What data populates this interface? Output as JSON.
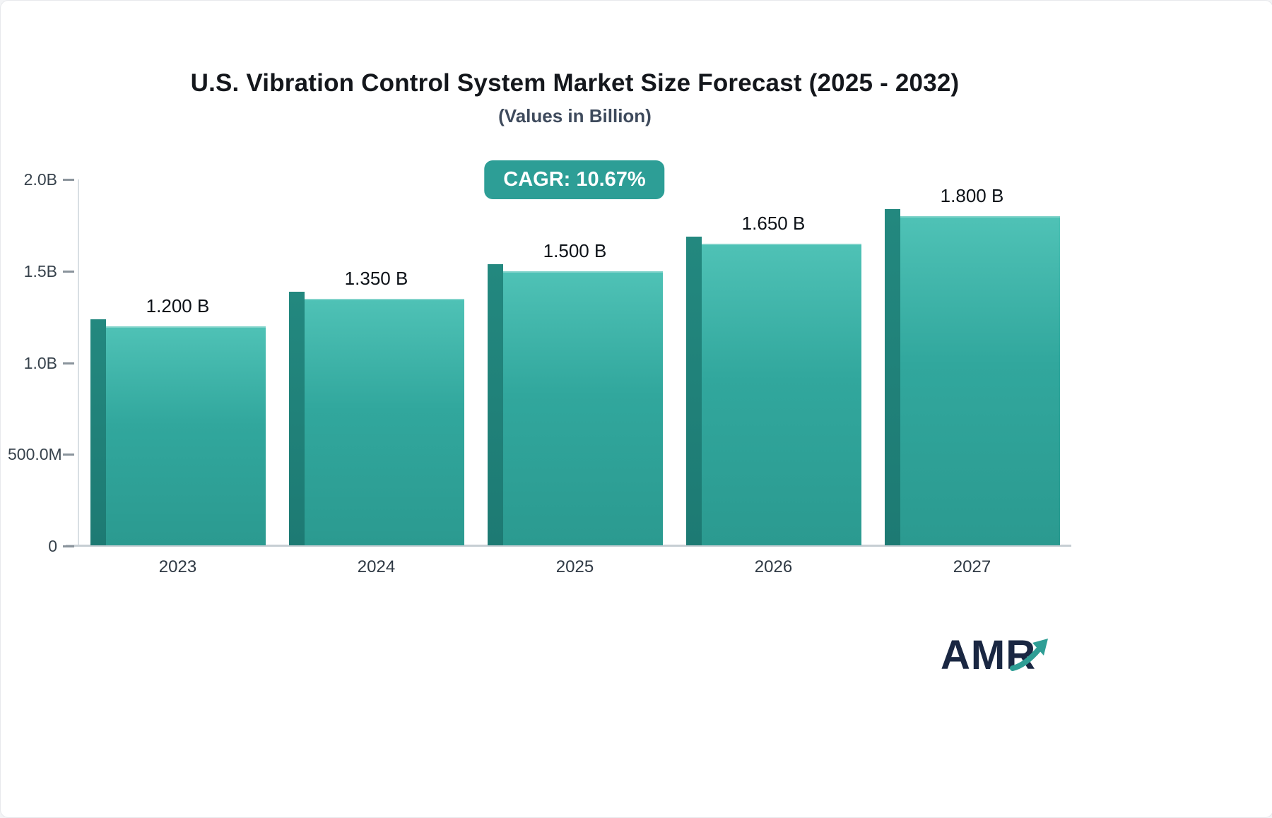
{
  "header": {
    "title": "U.S. Vibration Control System Market Size Forecast (2025 - 2032)",
    "subtitle": "(Values in Billion)",
    "cagr_badge": "CAGR: 10.67%"
  },
  "chart_data": {
    "type": "bar",
    "title": "U.S. Vibration Control System Market Size Forecast (2025 - 2032)",
    "subtitle": "(Values in Billion)",
    "annotation": "CAGR: 10.67%",
    "categories": [
      "2023",
      "2024",
      "2025",
      "2026",
      "2027"
    ],
    "values": [
      1.2,
      1.35,
      1.5,
      1.65,
      1.8
    ],
    "value_labels": [
      "1.200 B",
      "1.350 B",
      "1.500 B",
      "1.650 B",
      "1.800 B"
    ],
    "xlabel": "",
    "ylabel": "",
    "ylim": [
      0,
      2
    ],
    "yticks": [
      {
        "label": "2.0B",
        "value": 2.0
      },
      {
        "label": "1.5B",
        "value": 1.5
      },
      {
        "label": "1.0B",
        "value": 1.0
      },
      {
        "label": "500.0M",
        "value": 0.5
      },
      {
        "label": "0",
        "value": 0
      }
    ],
    "grid": false,
    "legend": false,
    "colors": {
      "bar_top": "#4FC2B6",
      "bar_bottom": "#2B9A90",
      "bar_side": "#1D7A73",
      "badge_bg": "#2D9E96",
      "badge_text": "#FFFFFF",
      "axis_line": "#C6CED3",
      "tick_text": "#37424C",
      "label_text": "#0D1218",
      "logo_text": "#1A2742",
      "logo_arrow": "#2E9E95"
    }
  },
  "logo": {
    "text": "AMR"
  }
}
